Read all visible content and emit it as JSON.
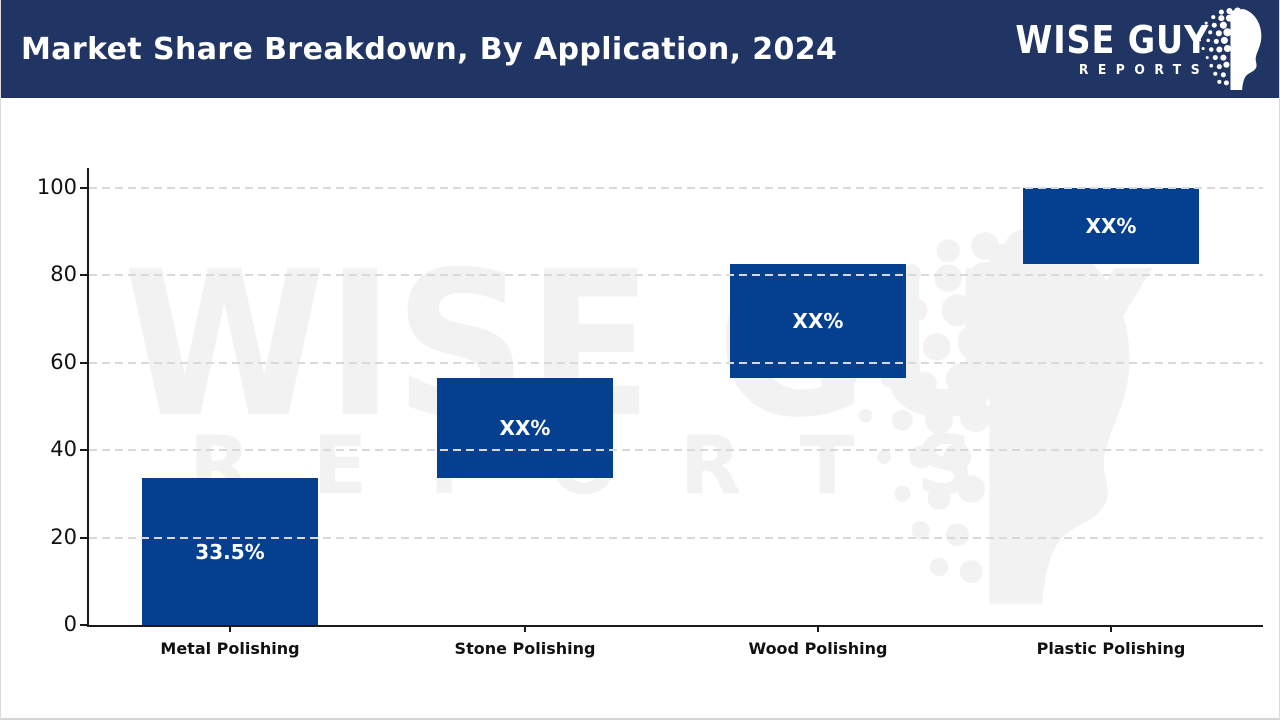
{
  "header": {
    "title": "Market Share Breakdown, By Application, 2024",
    "logo": {
      "line1": "WISE GUY",
      "line2": "REPORTS"
    }
  },
  "watermark": {
    "line1": "WISE GUY",
    "line2": "REPORTS"
  },
  "colors": {
    "header_bg": "#213564",
    "bar": "#04408f",
    "gridline": "#d9d9d9",
    "axis": "#1a1a1a",
    "watermark": "#f2f2f2",
    "bar_label": "#ffffff",
    "tick_label": "#111111"
  },
  "chart_data": {
    "type": "bar",
    "subtype": "waterfall",
    "title": "Market Share Breakdown, By Application, 2024",
    "categories": [
      "Metal Polishing",
      "Stone Polishing",
      "Wood Polishing",
      "Plastic Polishing"
    ],
    "bars": [
      {
        "category": "Metal Polishing",
        "start": 0,
        "end": 33.5,
        "value": 33.5,
        "label": "33.5%"
      },
      {
        "category": "Stone Polishing",
        "start": 33.5,
        "end": 56.5,
        "value": 23.0,
        "label": "XX%"
      },
      {
        "category": "Wood Polishing",
        "start": 56.5,
        "end": 82.5,
        "value": 26.0,
        "label": "XX%"
      },
      {
        "category": "Plastic Polishing",
        "start": 82.5,
        "end": 100,
        "value": 17.5,
        "label": "XX%"
      }
    ],
    "xlabel": "",
    "ylabel": "",
    "ylim": [
      0,
      100
    ],
    "yticks": [
      0,
      20,
      40,
      60,
      80,
      100
    ],
    "grid": "dashed-horizontal",
    "legend": null
  }
}
